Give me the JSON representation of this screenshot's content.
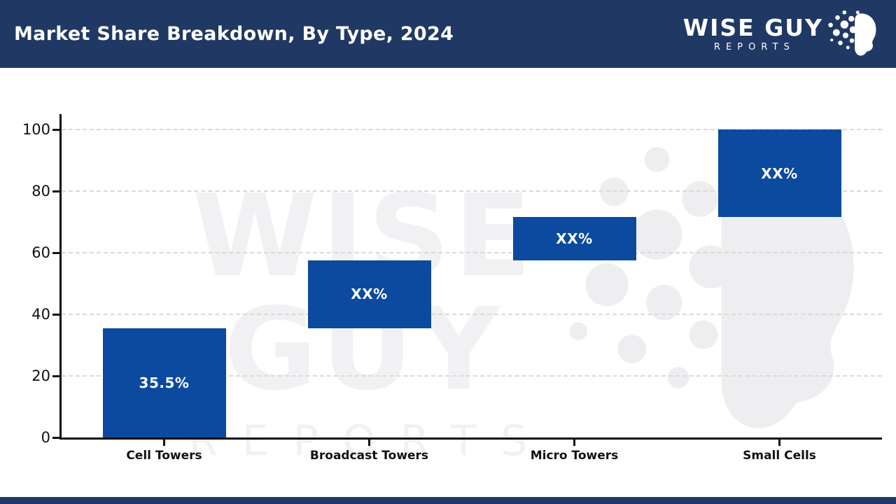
{
  "header": {
    "title": "Market Share Breakdown, By Type, 2024",
    "bg_color": "#1f3864",
    "logo": {
      "wordmark": "WISE GUY",
      "subtext": "REPORTS"
    }
  },
  "watermark": {
    "wordmark": "WISE GUY",
    "subtext": "REPORTS"
  },
  "chart_data": {
    "type": "bar",
    "subtype": "waterfall",
    "title": "Market Share Breakdown, By Type, 2024",
    "categories": [
      "Cell Towers",
      "Broadcast Towers",
      "Micro Towers",
      "Small Cells"
    ],
    "segments": [
      {
        "category": "Cell Towers",
        "start": 0,
        "end": 35.5,
        "label": "35.5%"
      },
      {
        "category": "Broadcast Towers",
        "start": 35.5,
        "end": 57.5,
        "label": "XX%"
      },
      {
        "category": "Micro Towers",
        "start": 57.5,
        "end": 71.5,
        "label": "XX%"
      },
      {
        "category": "Small Cells",
        "start": 71.5,
        "end": 100,
        "label": "XX%"
      }
    ],
    "y_ticks": [
      0,
      20,
      40,
      60,
      80,
      100
    ],
    "ylim": [
      0,
      105
    ],
    "xlabel": "",
    "ylabel": "",
    "legend_position": "none",
    "grid": "horizontal-dashed",
    "bar_color": "#0b4a9e",
    "bar_label_color": "#ffffff",
    "axis_color": "#111111",
    "gridline_color": "#d9d9d9"
  },
  "footer": {
    "bg_color": "#1f3864"
  }
}
